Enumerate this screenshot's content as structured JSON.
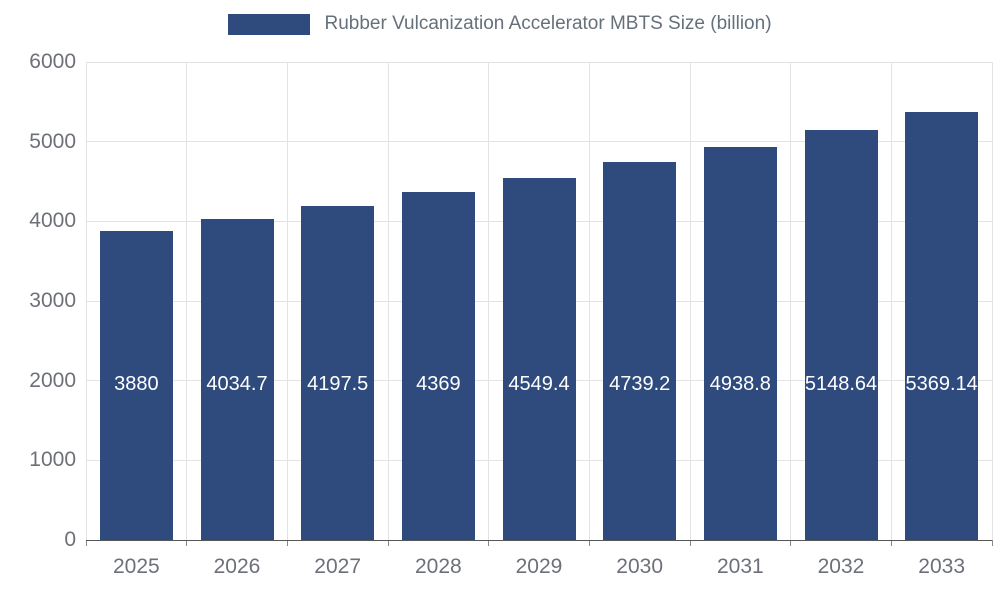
{
  "chart_data": {
    "type": "bar",
    "title": "Rubber Vulcanization Accelerator MBTS Size (billion)",
    "categories": [
      "2025",
      "2026",
      "2027",
      "2028",
      "2029",
      "2030",
      "2031",
      "2032",
      "2033"
    ],
    "values": [
      3880,
      4034.7,
      4197.5,
      4369,
      4549.4,
      4739.2,
      4938.8,
      5148.64,
      5369.14
    ],
    "bar_labels": [
      "3880",
      "4034.7",
      "4197.5",
      "4369",
      "4549.4",
      "4739.2",
      "4938.8",
      "5148.64",
      "5369.14"
    ],
    "xlabel": "",
    "ylabel": "",
    "ylim": [
      0,
      6000
    ],
    "yticks": [
      0,
      1000,
      2000,
      3000,
      4000,
      5000,
      6000
    ],
    "grid": true,
    "legend_position": "top",
    "colors": {
      "bar": "#2F4A7D",
      "bar_label": "#FFFFFF",
      "title": "#66707A",
      "axis_label": "#6E7079",
      "grid": "#E3E3E3",
      "axis_line": "#555555",
      "tick": "#888888",
      "background": "#FFFFFF"
    }
  }
}
